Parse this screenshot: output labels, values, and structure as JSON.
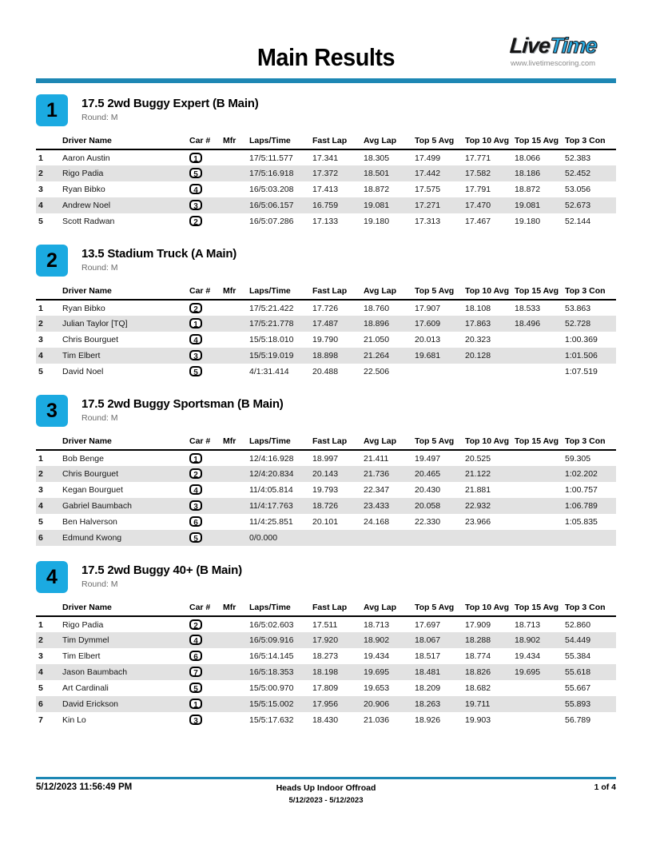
{
  "page": {
    "title": "Main Results"
  },
  "logo": {
    "part1": "Live",
    "part2": "Time",
    "tagline": "www.livetimescoring.com"
  },
  "colors": {
    "accent_bar": "#1d87b4",
    "section_badge": "#1baae1",
    "row_stripe": "#e2e2e2",
    "logo_blue": "#29abe2"
  },
  "table_columns": [
    "Driver Name",
    "Car #",
    "Mfr",
    "Laps/Time",
    "Fast Lap",
    "Avg Lap",
    "Top 5 Avg",
    "Top 10 Avg",
    "Top 15 Avg",
    "Top 3 Con"
  ],
  "sections": [
    {
      "number": "1",
      "title": "17.5 2wd Buggy Expert (B Main)",
      "round_label": "Round: M",
      "rows": [
        {
          "pos": "1",
          "driver": "Aaron Austin",
          "car": "1",
          "mfr": "",
          "laps_time": "17/5:11.577",
          "fast_lap": "17.341",
          "avg_lap": "18.305",
          "top_5_avg": "17.499",
          "top_10_avg": "17.771",
          "top_15_avg": "18.066",
          "top_3_con": "52.383"
        },
        {
          "pos": "2",
          "driver": "Rigo Padia",
          "car": "5",
          "mfr": "",
          "laps_time": "17/5:16.918",
          "fast_lap": "17.372",
          "avg_lap": "18.501",
          "top_5_avg": "17.442",
          "top_10_avg": "17.582",
          "top_15_avg": "18.186",
          "top_3_con": "52.452"
        },
        {
          "pos": "3",
          "driver": "Ryan Bibko",
          "car": "4",
          "mfr": "",
          "laps_time": "16/5:03.208",
          "fast_lap": "17.413",
          "avg_lap": "18.872",
          "top_5_avg": "17.575",
          "top_10_avg": "17.791",
          "top_15_avg": "18.872",
          "top_3_con": "53.056"
        },
        {
          "pos": "4",
          "driver": "Andrew Noel",
          "car": "3",
          "mfr": "",
          "laps_time": "16/5:06.157",
          "fast_lap": "16.759",
          "avg_lap": "19.081",
          "top_5_avg": "17.271",
          "top_10_avg": "17.470",
          "top_15_avg": "19.081",
          "top_3_con": "52.673"
        },
        {
          "pos": "5",
          "driver": "Scott Radwan",
          "car": "2",
          "mfr": "",
          "laps_time": "16/5:07.286",
          "fast_lap": "17.133",
          "avg_lap": "19.180",
          "top_5_avg": "17.313",
          "top_10_avg": "17.467",
          "top_15_avg": "19.180",
          "top_3_con": "52.144"
        }
      ]
    },
    {
      "number": "2",
      "title": "13.5 Stadium Truck (A Main)",
      "round_label": "Round: M",
      "rows": [
        {
          "pos": "1",
          "driver": "Ryan Bibko",
          "car": "2",
          "mfr": "",
          "laps_time": "17/5:21.422",
          "fast_lap": "17.726",
          "avg_lap": "18.760",
          "top_5_avg": "17.907",
          "top_10_avg": "18.108",
          "top_15_avg": "18.533",
          "top_3_con": "53.863"
        },
        {
          "pos": "2",
          "driver": "Julian Taylor [TQ]",
          "car": "1",
          "mfr": "",
          "laps_time": "17/5:21.778",
          "fast_lap": "17.487",
          "avg_lap": "18.896",
          "top_5_avg": "17.609",
          "top_10_avg": "17.863",
          "top_15_avg": "18.496",
          "top_3_con": "52.728"
        },
        {
          "pos": "3",
          "driver": "Chris Bourguet",
          "car": "4",
          "mfr": "",
          "laps_time": "15/5:18.010",
          "fast_lap": "19.790",
          "avg_lap": "21.050",
          "top_5_avg": "20.013",
          "top_10_avg": "20.323",
          "top_15_avg": "",
          "top_3_con": "1:00.369"
        },
        {
          "pos": "4",
          "driver": "Tim Elbert",
          "car": "3",
          "mfr": "",
          "laps_time": "15/5:19.019",
          "fast_lap": "18.898",
          "avg_lap": "21.264",
          "top_5_avg": "19.681",
          "top_10_avg": "20.128",
          "top_15_avg": "",
          "top_3_con": "1:01.506"
        },
        {
          "pos": "5",
          "driver": "David Noel",
          "car": "5",
          "mfr": "",
          "laps_time": "4/1:31.414",
          "fast_lap": "20.488",
          "avg_lap": "22.506",
          "top_5_avg": "",
          "top_10_avg": "",
          "top_15_avg": "",
          "top_3_con": "1:07.519"
        }
      ]
    },
    {
      "number": "3",
      "title": "17.5 2wd Buggy Sportsman  (B Main)",
      "round_label": "Round: M",
      "rows": [
        {
          "pos": "1",
          "driver": "Bob Benge",
          "car": "1",
          "mfr": "",
          "laps_time": "12/4:16.928",
          "fast_lap": "18.997",
          "avg_lap": "21.411",
          "top_5_avg": "19.497",
          "top_10_avg": "20.525",
          "top_15_avg": "",
          "top_3_con": "59.305"
        },
        {
          "pos": "2",
          "driver": "Chris Bourguet",
          "car": "2",
          "mfr": "",
          "laps_time": "12/4:20.834",
          "fast_lap": "20.143",
          "avg_lap": "21.736",
          "top_5_avg": "20.465",
          "top_10_avg": "21.122",
          "top_15_avg": "",
          "top_3_con": "1:02.202"
        },
        {
          "pos": "3",
          "driver": "Kegan Bourguet",
          "car": "4",
          "mfr": "",
          "laps_time": "11/4:05.814",
          "fast_lap": "19.793",
          "avg_lap": "22.347",
          "top_5_avg": "20.430",
          "top_10_avg": "21.881",
          "top_15_avg": "",
          "top_3_con": "1:00.757"
        },
        {
          "pos": "4",
          "driver": "Gabriel Baumbach",
          "car": "3",
          "mfr": "",
          "laps_time": "11/4:17.763",
          "fast_lap": "18.726",
          "avg_lap": "23.433",
          "top_5_avg": "20.058",
          "top_10_avg": "22.932",
          "top_15_avg": "",
          "top_3_con": "1:06.789"
        },
        {
          "pos": "5",
          "driver": "Ben Halverson",
          "car": "6",
          "mfr": "",
          "laps_time": "11/4:25.851",
          "fast_lap": "20.101",
          "avg_lap": "24.168",
          "top_5_avg": "22.330",
          "top_10_avg": "23.966",
          "top_15_avg": "",
          "top_3_con": "1:05.835"
        },
        {
          "pos": "6",
          "driver": "Edmund Kwong",
          "car": "5",
          "mfr": "",
          "laps_time": "0/0.000",
          "fast_lap": "",
          "avg_lap": "",
          "top_5_avg": "",
          "top_10_avg": "",
          "top_15_avg": "",
          "top_3_con": ""
        }
      ]
    },
    {
      "number": "4",
      "title": "17.5 2wd Buggy 40+ (B Main)",
      "round_label": "Round: M",
      "rows": [
        {
          "pos": "1",
          "driver": "Rigo Padia",
          "car": "2",
          "mfr": "",
          "laps_time": "16/5:02.603",
          "fast_lap": "17.511",
          "avg_lap": "18.713",
          "top_5_avg": "17.697",
          "top_10_avg": "17.909",
          "top_15_avg": "18.713",
          "top_3_con": "52.860"
        },
        {
          "pos": "2",
          "driver": "Tim Dymmel",
          "car": "4",
          "mfr": "",
          "laps_time": "16/5:09.916",
          "fast_lap": "17.920",
          "avg_lap": "18.902",
          "top_5_avg": "18.067",
          "top_10_avg": "18.288",
          "top_15_avg": "18.902",
          "top_3_con": "54.449"
        },
        {
          "pos": "3",
          "driver": "Tim Elbert",
          "car": "6",
          "mfr": "",
          "laps_time": "16/5:14.145",
          "fast_lap": "18.273",
          "avg_lap": "19.434",
          "top_5_avg": "18.517",
          "top_10_avg": "18.774",
          "top_15_avg": "19.434",
          "top_3_con": "55.384"
        },
        {
          "pos": "4",
          "driver": "Jason Baumbach",
          "car": "7",
          "mfr": "",
          "laps_time": "16/5:18.353",
          "fast_lap": "18.198",
          "avg_lap": "19.695",
          "top_5_avg": "18.481",
          "top_10_avg": "18.826",
          "top_15_avg": "19.695",
          "top_3_con": "55.618"
        },
        {
          "pos": "5",
          "driver": "Art Cardinali",
          "car": "5",
          "mfr": "",
          "laps_time": "15/5:00.970",
          "fast_lap": "17.809",
          "avg_lap": "19.653",
          "top_5_avg": "18.209",
          "top_10_avg": "18.682",
          "top_15_avg": "",
          "top_3_con": "55.667"
        },
        {
          "pos": "6",
          "driver": "David Erickson",
          "car": "1",
          "mfr": "",
          "laps_time": "15/5:15.002",
          "fast_lap": "17.956",
          "avg_lap": "20.906",
          "top_5_avg": "18.263",
          "top_10_avg": "19.711",
          "top_15_avg": "",
          "top_3_con": "55.893"
        },
        {
          "pos": "7",
          "driver": "Kin Lo",
          "car": "3",
          "mfr": "",
          "laps_time": "15/5:17.632",
          "fast_lap": "18.430",
          "avg_lap": "21.036",
          "top_5_avg": "18.926",
          "top_10_avg": "19.903",
          "top_15_avg": "",
          "top_3_con": "56.789"
        }
      ]
    }
  ],
  "footer": {
    "printed_at": "5/12/2023 11:56:49 PM",
    "event_name": "Heads Up Indoor Offroad",
    "event_dates": "5/12/2023 - 5/12/2023",
    "page_number": "1 of 4"
  }
}
